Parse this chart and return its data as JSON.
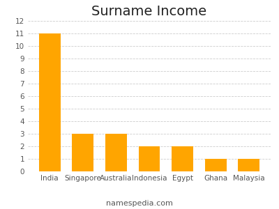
{
  "title": "Surname Income",
  "categories": [
    "India",
    "Singapore",
    "Australia",
    "Indonesia",
    "Egypt",
    "Ghana",
    "Malaysia"
  ],
  "values": [
    11,
    3,
    3,
    2,
    2,
    1,
    1
  ],
  "bar_color": "#FFA500",
  "ylim": [
    0,
    12
  ],
  "yticks": [
    0,
    1,
    2,
    3,
    4,
    5,
    6,
    7,
    8,
    9,
    10,
    11,
    12
  ],
  "grid_color": "#cccccc",
  "background_color": "#ffffff",
  "title_fontsize": 14,
  "xtick_fontsize": 7.5,
  "ytick_fontsize": 7.5,
  "footer_text": "namespedia.com",
  "footer_fontsize": 8,
  "bar_width": 0.65
}
